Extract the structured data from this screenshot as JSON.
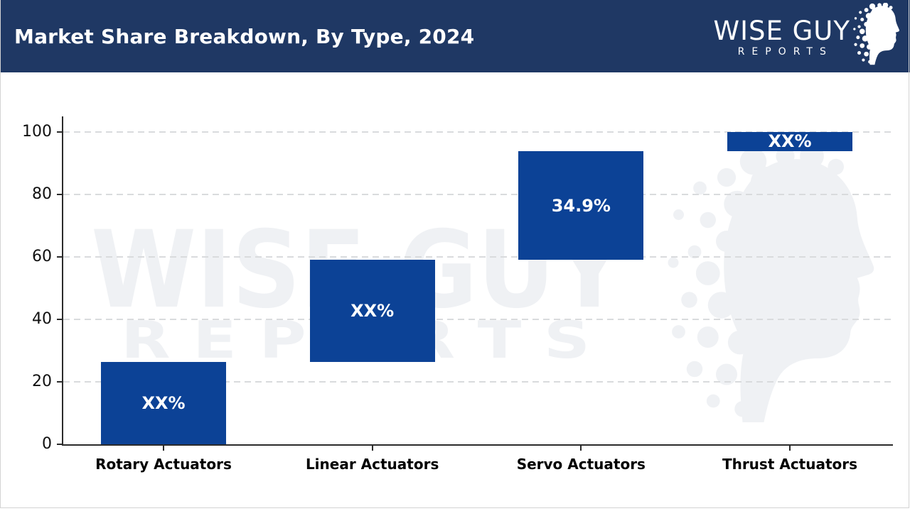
{
  "header": {
    "title": "Market Share Breakdown, By Type, 2024",
    "bg_color": "#1F3864",
    "logo": {
      "line1": "WISE GUY",
      "line2": "REPORTS"
    }
  },
  "watermark": {
    "line1": "WISE GUY",
    "line2": "R E P O R T S",
    "color": "#EFF1F4"
  },
  "chart_data": {
    "type": "bar",
    "subtype": "waterfall",
    "title": "Market Share Breakdown, By Type, 2024",
    "categories": [
      "Rotary Actuators",
      "Linear Actuators",
      "Servo Actuators",
      "Thrust Actuators"
    ],
    "bars": [
      {
        "category": "Rotary Actuators",
        "start": 0,
        "end": 26.3,
        "label": "XX%"
      },
      {
        "category": "Linear Actuators",
        "start": 26.3,
        "end": 59.0,
        "label": "XX%"
      },
      {
        "category": "Servo Actuators",
        "start": 59.0,
        "end": 93.9,
        "label": "34.9%"
      },
      {
        "category": "Thrust Actuators",
        "start": 93.9,
        "end": 100.0,
        "label": "XX%"
      }
    ],
    "xlabel": "",
    "ylabel": "",
    "ylim": [
      0,
      105
    ],
    "yticks": [
      0,
      20,
      40,
      60,
      80,
      100
    ],
    "grid": "horizontal-dashed",
    "gridline_color": "#D9DBDD",
    "bar_color": "#0C4296",
    "bar_label_color": "#FFFFFF",
    "legend": null
  }
}
